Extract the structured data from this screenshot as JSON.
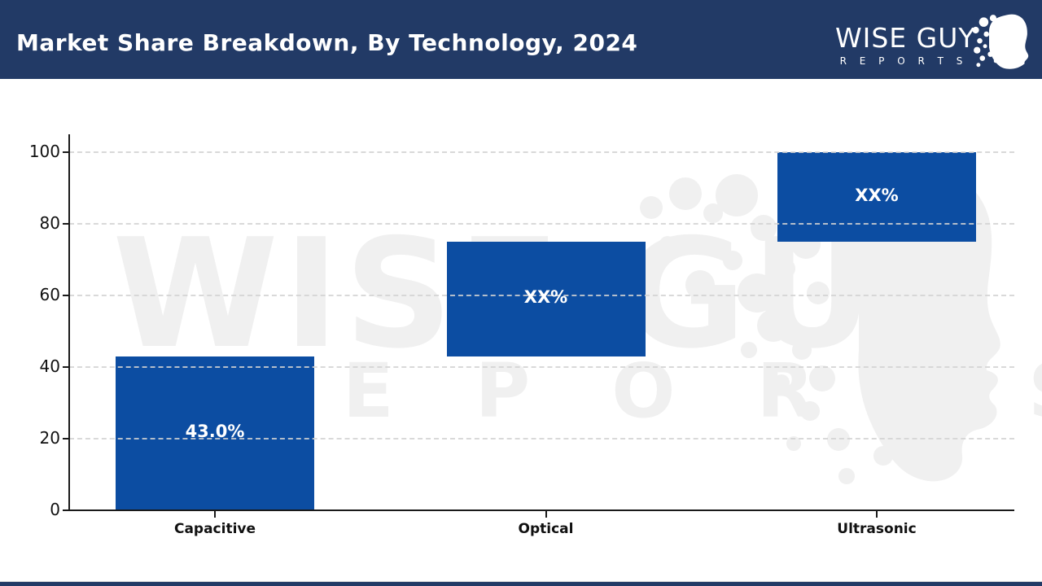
{
  "header": {
    "title": "Market Share Breakdown, By Technology, 2024",
    "logo": {
      "line1": "WISE GUY",
      "line2": "R E P O R T S"
    }
  },
  "watermark": {
    "line1": "WISE GUY",
    "line2": "R E P O R T S"
  },
  "colors": {
    "header_bg": "#223A66",
    "bar_blue": "#0C4DA2",
    "gridline": "#D2D2D2",
    "watermark_gray": "#F0F0F0",
    "axis_black": "#1A1A1A",
    "value_label": "#FFFFFF"
  },
  "chart_data": {
    "type": "bar",
    "subtype": "floating-waterfall",
    "title": "Market Share Breakdown, By Technology, 2024",
    "categories": [
      "Capacitive",
      "Optical",
      "Ultrasonic"
    ],
    "segments": [
      {
        "category": "Capacitive",
        "start": 0,
        "end": 43,
        "label": "43.0%"
      },
      {
        "category": "Optical",
        "start": 43,
        "end": 75,
        "label": "XX%"
      },
      {
        "category": "Ultrasonic",
        "start": 75,
        "end": 100,
        "label": "XX%"
      }
    ],
    "xlabel": "",
    "ylabel": "",
    "ylim": [
      0,
      100
    ],
    "yticks": [
      0,
      20,
      40,
      60,
      80,
      100
    ],
    "grid": "horizontal dashed, drawn over bars",
    "legend": "none",
    "bar_color": "#0C4DA2",
    "value_label_color": "#FFFFFF"
  }
}
